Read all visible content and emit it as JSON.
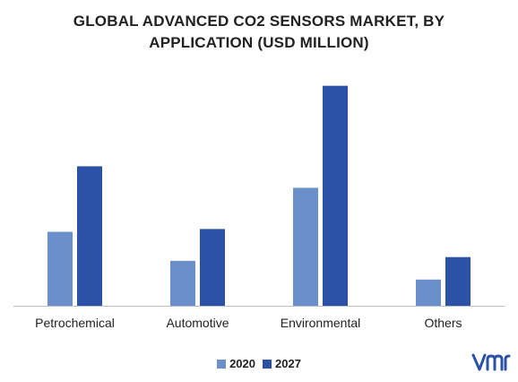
{
  "chart_data": {
    "type": "bar",
    "title_lines": [
      "GLOBAL ADVANCED CO2 SENSORS MARKET, BY",
      "APPLICATION (USD MILLION)"
    ],
    "categories": [
      "Petrochemical",
      "Automotive",
      "Environmental",
      "Others"
    ],
    "series": [
      {
        "name": "2020",
        "values": [
          79,
          48,
          126,
          28
        ],
        "color": "#6a8fcb"
      },
      {
        "name": "2027",
        "values": [
          149,
          82,
          235,
          52
        ],
        "color": "#2c52a7"
      }
    ],
    "ylim": [
      0,
      250
    ],
    "grid": false,
    "legend_position": "bottom-center"
  },
  "logo": {
    "icon": "vmr-logo-icon",
    "color": "#2c52a7"
  }
}
